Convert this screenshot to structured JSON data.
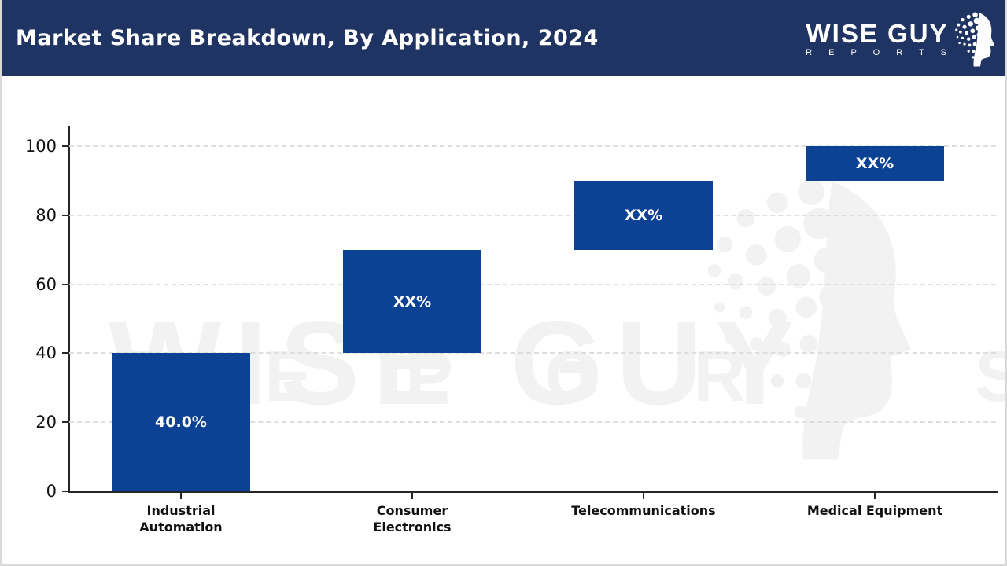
{
  "header": {
    "title": "Market Share Breakdown, By Application, 2024",
    "bg_color": "#1f3462",
    "logo": {
      "primary": "WISE GUY",
      "secondary": "R E P O R T S"
    }
  },
  "watermark": {
    "primary": "WISE GUY",
    "secondary": "R E P O R T S"
  },
  "chart_data": {
    "type": "bar",
    "variant": "floating-waterfall-percent",
    "title": "Market Share Breakdown, By Application, 2024",
    "categories": [
      "Industrial Automation",
      "Consumer Electronics",
      "Telecommunications",
      "Medical Equipment"
    ],
    "category_lines": [
      [
        "Industrial",
        "Automation"
      ],
      [
        "Consumer",
        "Electronics"
      ],
      [
        "Telecommunications"
      ],
      [
        "Medical Equipment"
      ]
    ],
    "segments": [
      {
        "category": "Industrial Automation",
        "start": 0,
        "end": 40,
        "value": 40,
        "label": "40.0%"
      },
      {
        "category": "Consumer Electronics",
        "start": 40,
        "end": 70,
        "value": 30,
        "label": "XX%"
      },
      {
        "category": "Telecommunications",
        "start": 70,
        "end": 90,
        "value": 20,
        "label": "XX%"
      },
      {
        "category": "Medical Equipment",
        "start": 90,
        "end": 100,
        "value": 10,
        "label": "XX%"
      }
    ],
    "yticks": [
      0,
      20,
      40,
      60,
      80,
      100
    ],
    "ylim": [
      0,
      106
    ],
    "xlabel": "",
    "ylabel": "",
    "legend": "none",
    "grid": {
      "horizontal": true,
      "style": "dashed",
      "color": "#dedede"
    },
    "bar_color": "#0c4294",
    "bar_label_color": "#ffffff",
    "axis_color": "#262626"
  }
}
